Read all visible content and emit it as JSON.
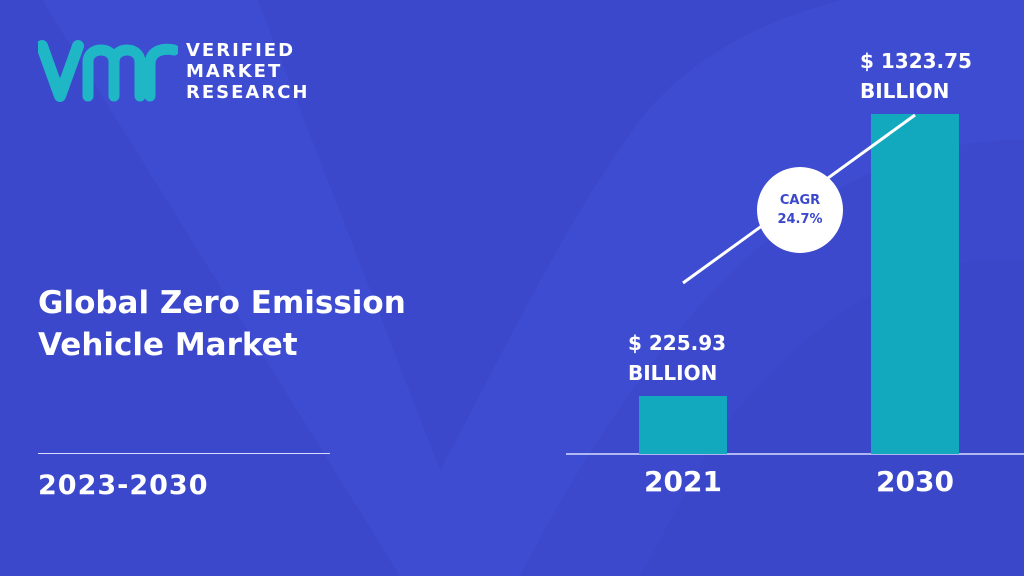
{
  "brand": {
    "line1": "VERIFIED",
    "line2": "MARKET",
    "line3": "RESEARCH"
  },
  "title": {
    "line1": "Global Zero Emission",
    "line2": "Vehicle Market"
  },
  "period": "2023-2030",
  "cagr": {
    "label": "CAGR",
    "value": "24.7%"
  },
  "colors": {
    "background": "#3b48cc",
    "bar": "#12a9bf",
    "text": "#ffffff"
  },
  "chart_data": {
    "type": "bar",
    "categories": [
      "2021",
      "2030"
    ],
    "values": [
      225.93,
      1323.75
    ],
    "value_labels": [
      {
        "amount": "$ 225.93",
        "unit": "BILLION"
      },
      {
        "amount": "$ 1323.75",
        "unit": "BILLION"
      }
    ],
    "ylim": [
      0,
      1323.75
    ],
    "grid": false
  }
}
